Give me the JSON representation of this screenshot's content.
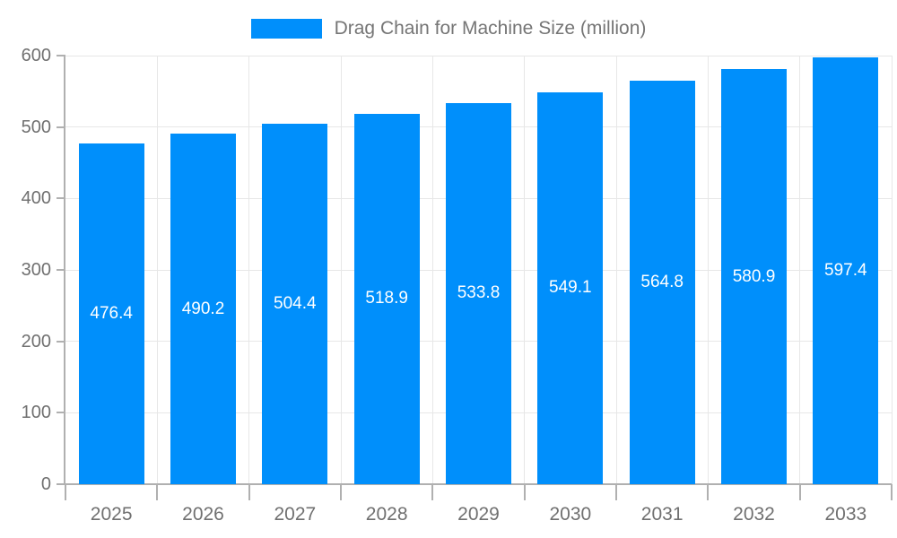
{
  "chart_data": {
    "type": "bar",
    "title": "Drag Chain for Machine Size (million)",
    "legend": [
      "Drag Chain for Machine Size (million)"
    ],
    "legend_position": "top",
    "categories": [
      "2025",
      "2026",
      "2027",
      "2028",
      "2029",
      "2030",
      "2031",
      "2032",
      "2033"
    ],
    "values": [
      476.4,
      490.2,
      504.4,
      518.9,
      533.8,
      549.1,
      564.8,
      580.9,
      597.4
    ],
    "xlabel": "",
    "ylabel": "",
    "ylim": [
      0,
      600
    ],
    "ytick_step": 100,
    "ytick_labels": [
      "0",
      "100",
      "200",
      "300",
      "400",
      "500",
      "600"
    ],
    "grid": true,
    "value_labels_shown": true,
    "colors": {
      "bar": "#008FFB",
      "axis_label": "#707070",
      "legend_text": "#757575",
      "gridline": "#e7e7e7",
      "axis_line": "#b0b0b0",
      "value_label": "#ffffff",
      "background": "#ffffff"
    }
  }
}
